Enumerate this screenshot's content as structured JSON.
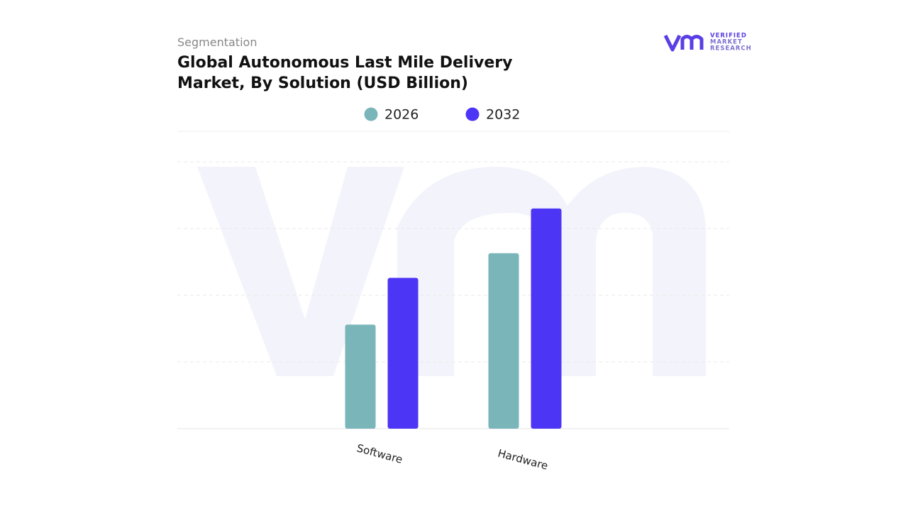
{
  "chart_data": {
    "type": "bar",
    "kicker": "Segmentation",
    "title": "Global Autonomous Last Mile Delivery Market, By Solution (USD Billion)",
    "logo": [
      "VERIFIED",
      "MARKET",
      "RESEARCH"
    ],
    "categories": [
      "Software",
      "Hardware"
    ],
    "series": [
      {
        "name": "2026",
        "color": "#7ab5b9",
        "values": [
          1.56,
          2.63
        ]
      },
      {
        "name": "2032",
        "color": "#4c35f5",
        "values": [
          2.26,
          3.3
        ]
      }
    ],
    "ylim": [
      0,
      4
    ],
    "yticks": [
      0,
      1,
      2,
      3,
      4
    ],
    "grid": true
  }
}
